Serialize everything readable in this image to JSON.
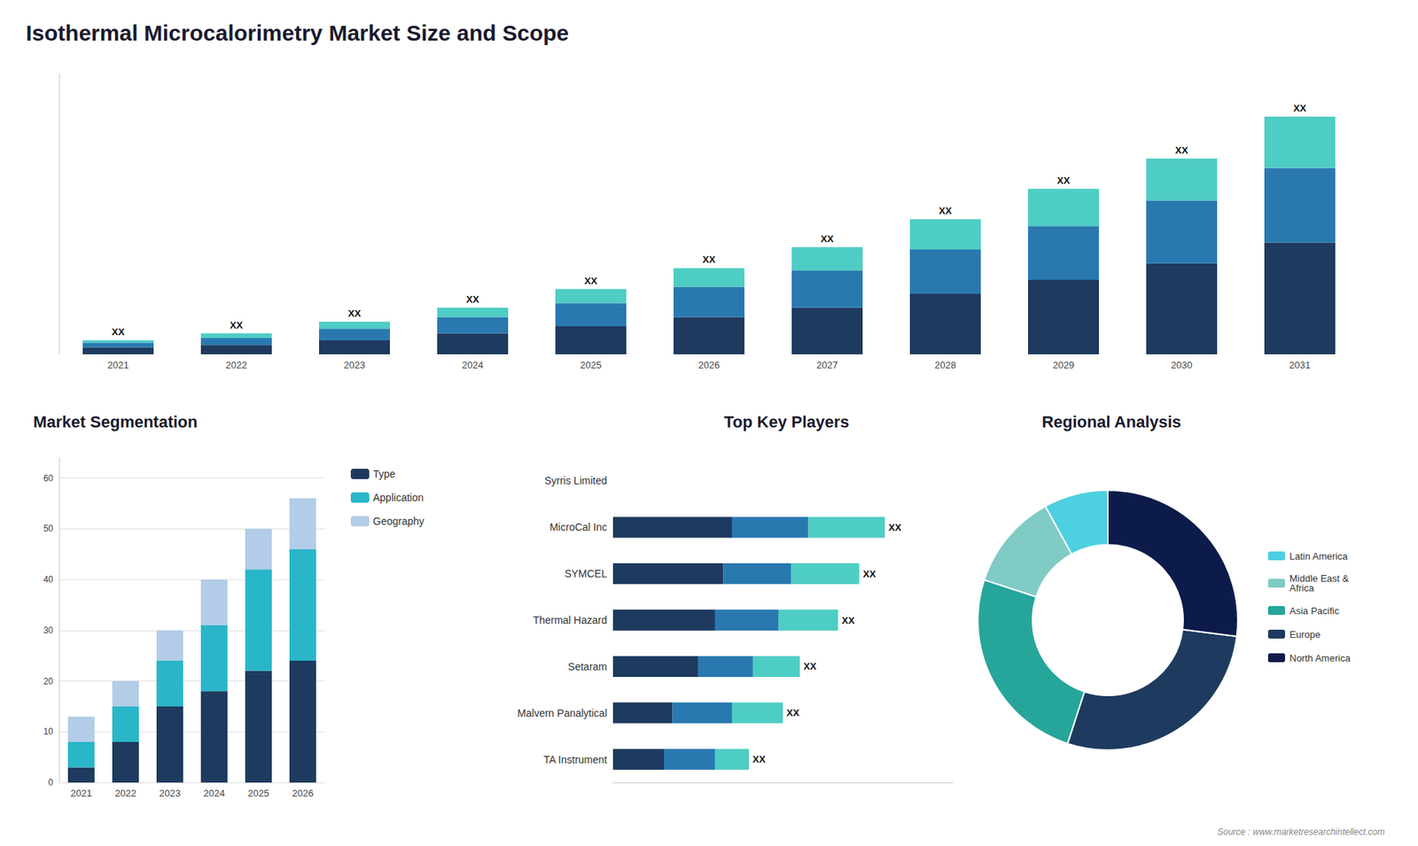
{
  "chart_data": [
    {
      "type": "bar",
      "title": "Isothermal Microcalorimetry Market Size and Scope",
      "stacked": true,
      "categories": [
        "2021",
        "2022",
        "2023",
        "2024",
        "2025",
        "2026",
        "2027",
        "2028",
        "2029",
        "2030",
        "2031"
      ],
      "series": [
        {
          "color": "#1e3a5f",
          "values": [
            1.5,
            2.0,
            3.0,
            4.5,
            6.0,
            8.0,
            10.0,
            13.0,
            16.0,
            19.5,
            24.0
          ]
        },
        {
          "color": "#2979b0",
          "values": [
            1.0,
            1.5,
            2.5,
            3.5,
            5.0,
            6.5,
            8.0,
            9.5,
            11.5,
            13.5,
            16.0
          ]
        },
        {
          "color": "#4ecdc4",
          "values": [
            0.5,
            1.0,
            1.5,
            2.0,
            3.0,
            4.0,
            5.0,
            6.5,
            8.0,
            9.0,
            11.0
          ]
        }
      ],
      "ylim": [
        0,
        60.18
      ],
      "tick_labels": "x",
      "grid": false,
      "annotations": [
        {
          "category": "2021",
          "text": "XX"
        },
        {
          "category": "2022",
          "text": "XX"
        },
        {
          "category": "2023",
          "text": "XX"
        },
        {
          "category": "2024",
          "text": "XX"
        },
        {
          "category": "2025",
          "text": "XX"
        },
        {
          "category": "2026",
          "text": "XX"
        },
        {
          "category": "2027",
          "text": "XX"
        },
        {
          "category": "2028",
          "text": "XX"
        },
        {
          "category": "2029",
          "text": "XX"
        },
        {
          "category": "2030",
          "text": "XX"
        },
        {
          "category": "2031",
          "text": "XX"
        }
      ]
    },
    {
      "type": "bar",
      "title": "Market Segmentation",
      "stacked": true,
      "categories": [
        "2021",
        "2022",
        "2023",
        "2024",
        "2025",
        "2026"
      ],
      "series": [
        {
          "name": "Type",
          "color": "#1e3a5f",
          "values": [
            3,
            8,
            15,
            18,
            22,
            24
          ]
        },
        {
          "name": "Application",
          "color": "#29b6c8",
          "values": [
            5,
            7,
            9,
            13,
            20,
            22
          ]
        },
        {
          "name": "Geography",
          "color": "#b3cde8",
          "values": [
            5,
            5,
            6,
            9,
            8,
            10
          ]
        }
      ],
      "ylim": [
        0,
        64
      ],
      "yticks": [
        0,
        10,
        20,
        30,
        40,
        50,
        60
      ],
      "grid": true,
      "legend": "right"
    },
    {
      "type": "bar",
      "title": "Top Key Players",
      "stacked": true,
      "orientation": "horizontal",
      "categories": [
        "Syrris Limited",
        "MicroCal Inc",
        "SYMCEL",
        "Thermal Hazard",
        "Setaram",
        "Malvern Panalytical",
        "TA Instrument"
      ],
      "series": [
        {
          "color": "#1e3a5f",
          "values": [
            0,
            28,
            26,
            24,
            20,
            14,
            12
          ]
        },
        {
          "color": "#2979b0",
          "values": [
            0,
            18,
            16,
            15,
            13,
            14,
            12
          ]
        },
        {
          "color": "#4ecdc4",
          "values": [
            0,
            18,
            16,
            14,
            11,
            12,
            8
          ]
        }
      ],
      "xlim": [
        0,
        80
      ],
      "tick_labels": "y",
      "grid": false,
      "annotations": [
        {
          "category": "MicroCal Inc",
          "text": "XX"
        },
        {
          "category": "SYMCEL",
          "text": "XX"
        },
        {
          "category": "Thermal Hazard",
          "text": "XX"
        },
        {
          "category": "Setaram",
          "text": "XX"
        },
        {
          "category": "Malvern Panalytical",
          "text": "XX"
        },
        {
          "category": "TA Instrument",
          "text": "XX"
        }
      ]
    },
    {
      "type": "pie",
      "title": "Regional Analysis",
      "categories": [
        "Latin America",
        "Middle East &\nAfrica",
        "Asia Pacific",
        "Europe",
        "North America"
      ],
      "values": [
        8,
        12,
        25,
        28,
        27
      ],
      "colors": [
        "#4dd0e1",
        "#80cbc4",
        "#26a69a",
        "#1e3a5f",
        "#0d1b4b"
      ],
      "legend": "right",
      "annotations": [
        {
          "text": "Source : www.marketresearchintellect.com"
        }
      ]
    }
  ]
}
